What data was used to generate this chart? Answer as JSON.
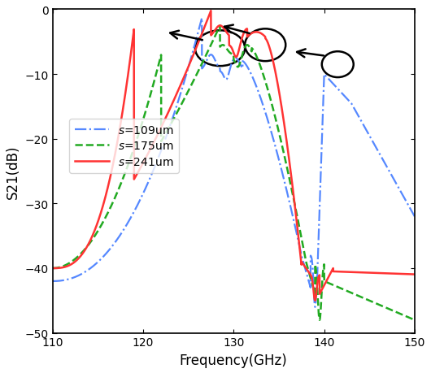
{
  "xlabel": "Frequency(GHz)",
  "ylabel": "S21(dB)",
  "xlim": [
    110,
    150
  ],
  "ylim": [
    -50,
    0
  ],
  "xticks": [
    110,
    120,
    130,
    140,
    150
  ],
  "yticks": [
    0,
    -10,
    -20,
    -30,
    -40,
    -50
  ],
  "color_109": "#5588FF",
  "color_175": "#22AA22",
  "color_241": "#FF3333",
  "figsize": [
    5.3,
    4.6
  ],
  "dpi": 100
}
